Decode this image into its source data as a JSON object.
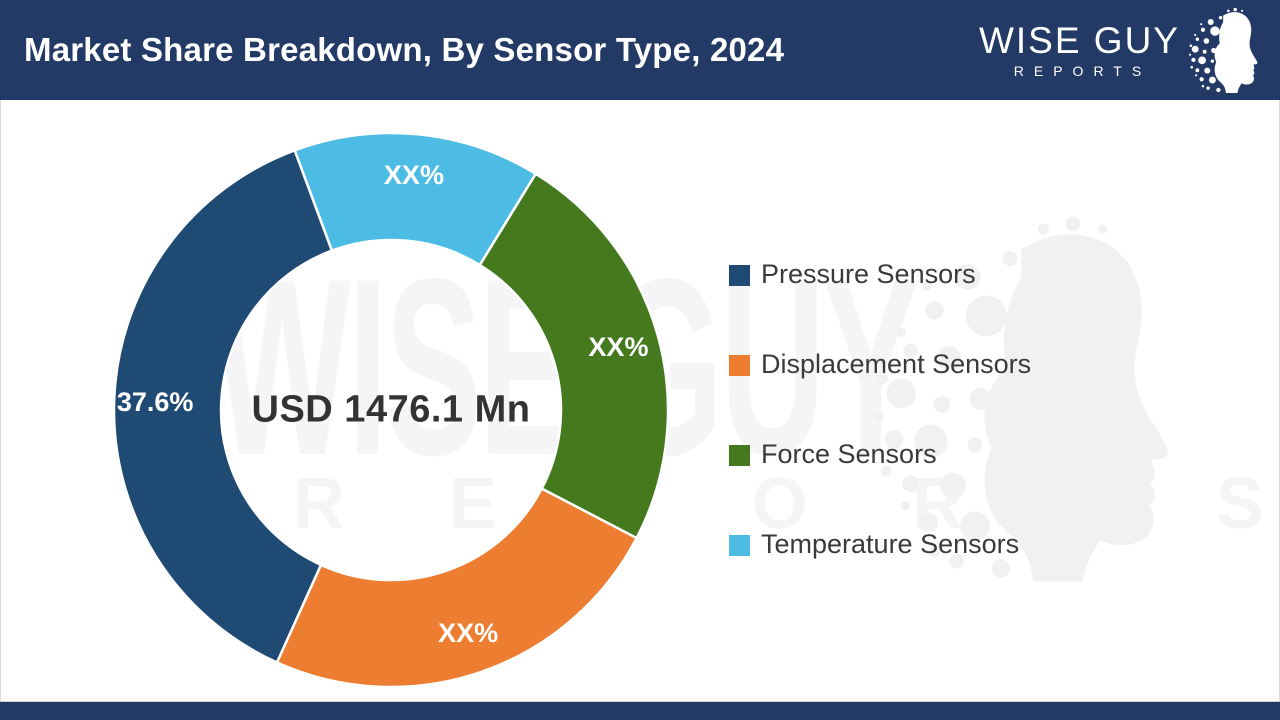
{
  "header": {
    "title": "Market Share Breakdown, By Sensor Type, 2024",
    "logo": {
      "brand": "WISE GUY",
      "sub": "REPORTS"
    }
  },
  "chart_data": {
    "type": "donut",
    "title": "Market Share Breakdown, By Sensor Type, 2024",
    "year": "2024",
    "center_label": "USD 1476.1 Mn",
    "total": {
      "value": 1476.1,
      "unit": "USD Mn"
    },
    "legend_position": "right",
    "segments": [
      {
        "name": "Pressure Sensors",
        "color": "#1F4A73",
        "value_pct": 37.6,
        "label": "37.6%"
      },
      {
        "name": "Displacement Sensors",
        "color": "#ED7D31",
        "value_pct": 24.1,
        "label": "XX%"
      },
      {
        "name": "Force Sensors",
        "color": "#44791E",
        "value_pct": 23.9,
        "label": "XX%"
      },
      {
        "name": "Temperature Sensors",
        "color": "#4DBCE5",
        "value_pct": 14.4,
        "label": "XX%"
      }
    ],
    "geometry": {
      "center": [
        390,
        310
      ],
      "outer_radius": 277,
      "inner_radius": 170,
      "label_radius": 236,
      "start_angle": 204.3,
      "draw_order": [
        0,
        3,
        2,
        1
      ],
      "separator_color": "#ffffff"
    }
  },
  "watermark": {
    "line1": "WISE GUY",
    "line2": "R E P O R T S"
  },
  "colors": {
    "header_bg": "#233A66",
    "footer_bg": "#233A66",
    "title_text": "#ffffff",
    "legend_text": "#3a3a3a",
    "center_text": "#333333"
  }
}
